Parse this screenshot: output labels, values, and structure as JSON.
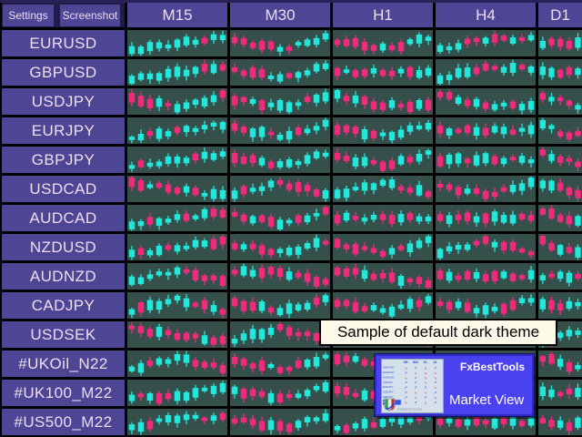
{
  "colors": {
    "grid_border": "#000000",
    "panel_purple": "#4d4695",
    "label_text": "#efdcef",
    "chart_bg": "#35504a",
    "candle_up": "#23e6dc",
    "candle_down": "#f22a7d",
    "topbar": "#221c49",
    "caption_bg": "#fdfae9",
    "popup_bg": "#4b42ef"
  },
  "toolbar": {
    "settings_label": "Settings",
    "screenshot_label": "Screenshot"
  },
  "columns": [
    "M15",
    "M30",
    "H1",
    "H4",
    "D1"
  ],
  "rows": [
    {
      "label": "EURUSD",
      "cells": [
        {
          "shape": "up",
          "seq": "uuuuuuuuduu"
        },
        {
          "shape": "v",
          "seq": "ddddduduuuu"
        },
        {
          "shape": "v",
          "seq": "dddddudduuu"
        },
        {
          "shape": "uf",
          "seq": "uuudduddudu"
        },
        {
          "shape": "flat",
          "seq": "uddduu"
        }
      ]
    },
    {
      "label": "GBPUSD",
      "cells": [
        {
          "shape": "up",
          "seq": "uuuuuuuudud"
        },
        {
          "shape": "v",
          "seq": "dddduuduuuu"
        },
        {
          "shape": "flat",
          "seq": "duddudduduu"
        },
        {
          "shape": "uf",
          "seq": "uuuuddduudu"
        },
        {
          "shape": "flat",
          "seq": "uudduu"
        }
      ]
    },
    {
      "label": "USDJPY",
      "cells": [
        {
          "shape": "v",
          "seq": "ddduduuuuud"
        },
        {
          "shape": "v",
          "seq": "dduduuuuduu"
        },
        {
          "shape": "df",
          "seq": "ududdduddud"
        },
        {
          "shape": "df",
          "seq": "ddududuuduu"
        },
        {
          "shape": "down",
          "seq": "duddud"
        }
      ]
    },
    {
      "label": "EURJPY",
      "cells": [
        {
          "shape": "up",
          "seq": "uuduuduuuuu"
        },
        {
          "shape": "v",
          "seq": "dduuduuduuu"
        },
        {
          "shape": "v",
          "seq": "ddduduuuuuu"
        },
        {
          "shape": "flat",
          "seq": "dudduduuduu"
        },
        {
          "shape": "df",
          "seq": "uudddu"
        }
      ]
    },
    {
      "label": "GBPJPY",
      "cells": [
        {
          "shape": "up",
          "seq": "uduuuuuduuu"
        },
        {
          "shape": "v",
          "seq": "ddduduuuuuu"
        },
        {
          "shape": "v",
          "seq": "dduuddduduu"
        },
        {
          "shape": "flat",
          "seq": "duuduududuu"
        },
        {
          "shape": "down",
          "seq": "dudddu"
        }
      ]
    },
    {
      "label": "USDCAD",
      "cells": [
        {
          "shape": "down",
          "seq": "dduddduduuu"
        },
        {
          "shape": "peak",
          "seq": "uduuudddddu"
        },
        {
          "shape": "peak",
          "seq": "uuuuuuuddud"
        },
        {
          "shape": "v",
          "seq": "dddudddduuu"
        },
        {
          "shape": "down",
          "seq": "uudddd"
        }
      ]
    },
    {
      "label": "AUDCAD",
      "cells": [
        {
          "shape": "up",
          "seq": "uuduuuduudd"
        },
        {
          "shape": "v",
          "seq": "ddudduuduud"
        },
        {
          "shape": "flat",
          "seq": "duduudduduu"
        },
        {
          "shape": "flat",
          "seq": "dudduduuudd"
        },
        {
          "shape": "down",
          "seq": "ddddud"
        }
      ]
    },
    {
      "label": "NZDUSD",
      "cells": [
        {
          "shape": "up",
          "seq": "uduuduuuudd"
        },
        {
          "shape": "v",
          "seq": "duddduuuuud"
        },
        {
          "shape": "v",
          "seq": "dddddduduuu"
        },
        {
          "shape": "peak",
          "seq": "uuuuddudddd"
        },
        {
          "shape": "df",
          "seq": "ddudud"
        }
      ]
    },
    {
      "label": "AUDNZD",
      "cells": [
        {
          "shape": "peak",
          "seq": "uuuuuuddddd"
        },
        {
          "shape": "fd",
          "seq": "duudddudddd"
        },
        {
          "shape": "down",
          "seq": "ddduddduddd"
        },
        {
          "shape": "flat",
          "seq": "duddudduddu"
        },
        {
          "shape": "flat",
          "seq": "uduudd"
        }
      ]
    },
    {
      "label": "CADJPY",
      "cells": [
        {
          "shape": "peak",
          "seq": "uduuuuuddud"
        },
        {
          "shape": "v",
          "seq": "ddduduuuudu"
        },
        {
          "shape": "v",
          "seq": "dddduuuuudu"
        },
        {
          "shape": "v",
          "seq": "dduduuudduu"
        },
        {
          "shape": "flat",
          "seq": "udduud"
        }
      ]
    },
    {
      "label": "USDSEK",
      "cells": [
        {
          "shape": "down",
          "seq": "ddduddddudd"
        },
        {
          "shape": "peak",
          "seq": "uuuuudddddd"
        },
        {
          "shape": "down",
          "seq": "dddddudddud"
        },
        {
          "shape": "v",
          "seq": "dddudduuduu"
        },
        {
          "shape": "up",
          "seq": "uduuuu"
        }
      ]
    },
    {
      "label": "#UKOil_N22",
      "cells": [
        {
          "shape": "peak",
          "seq": "uuduuuudddd"
        },
        {
          "shape": "v",
          "seq": "dddduddduuu"
        },
        {
          "shape": "down",
          "seq": "ddudddududd"
        },
        {
          "shape": "flat",
          "seq": "duduudduddu"
        },
        {
          "shape": "down",
          "seq": "ddudud"
        }
      ]
    },
    {
      "label": "#UK100_M22",
      "cells": [
        {
          "shape": "fu",
          "seq": "ududduuuuuu"
        },
        {
          "shape": "v",
          "seq": "udddudduuuu"
        },
        {
          "shape": "v",
          "seq": "dddudduuuuu"
        },
        {
          "shape": "flat",
          "seq": "ududduddudu"
        },
        {
          "shape": "flat",
          "seq": "uuddud"
        }
      ]
    },
    {
      "label": "#US500_M22",
      "cells": [
        {
          "shape": "uf",
          "seq": "uuduuuuudud"
        },
        {
          "shape": "v",
          "seq": "ddddudduuuu"
        },
        {
          "shape": "up",
          "seq": "uduuduuuudu"
        },
        {
          "shape": "flat",
          "seq": "dududdududu"
        },
        {
          "shape": "v",
          "seq": "dduduu"
        }
      ]
    }
  ],
  "overlay": {
    "caption": "Sample of default dark theme",
    "popup": {
      "brand": "FxBestTools",
      "title": "Market View",
      "mini": {
        "columns": [
          "M5",
          "M30",
          "H1",
          "D1"
        ],
        "rows": [
          "GBPUSD",
          "EURUSD",
          "USDCAD",
          "USDJPY",
          "EURJPY",
          "CADJPY",
          "GBPJPY",
          "AUDNZD"
        ],
        "arrows": [
          "dudu",
          "uddd",
          "dudd",
          "uudu",
          "uuud",
          "uddu",
          "udud",
          "dudu"
        ],
        "watermark": "FxBestTools"
      }
    }
  }
}
